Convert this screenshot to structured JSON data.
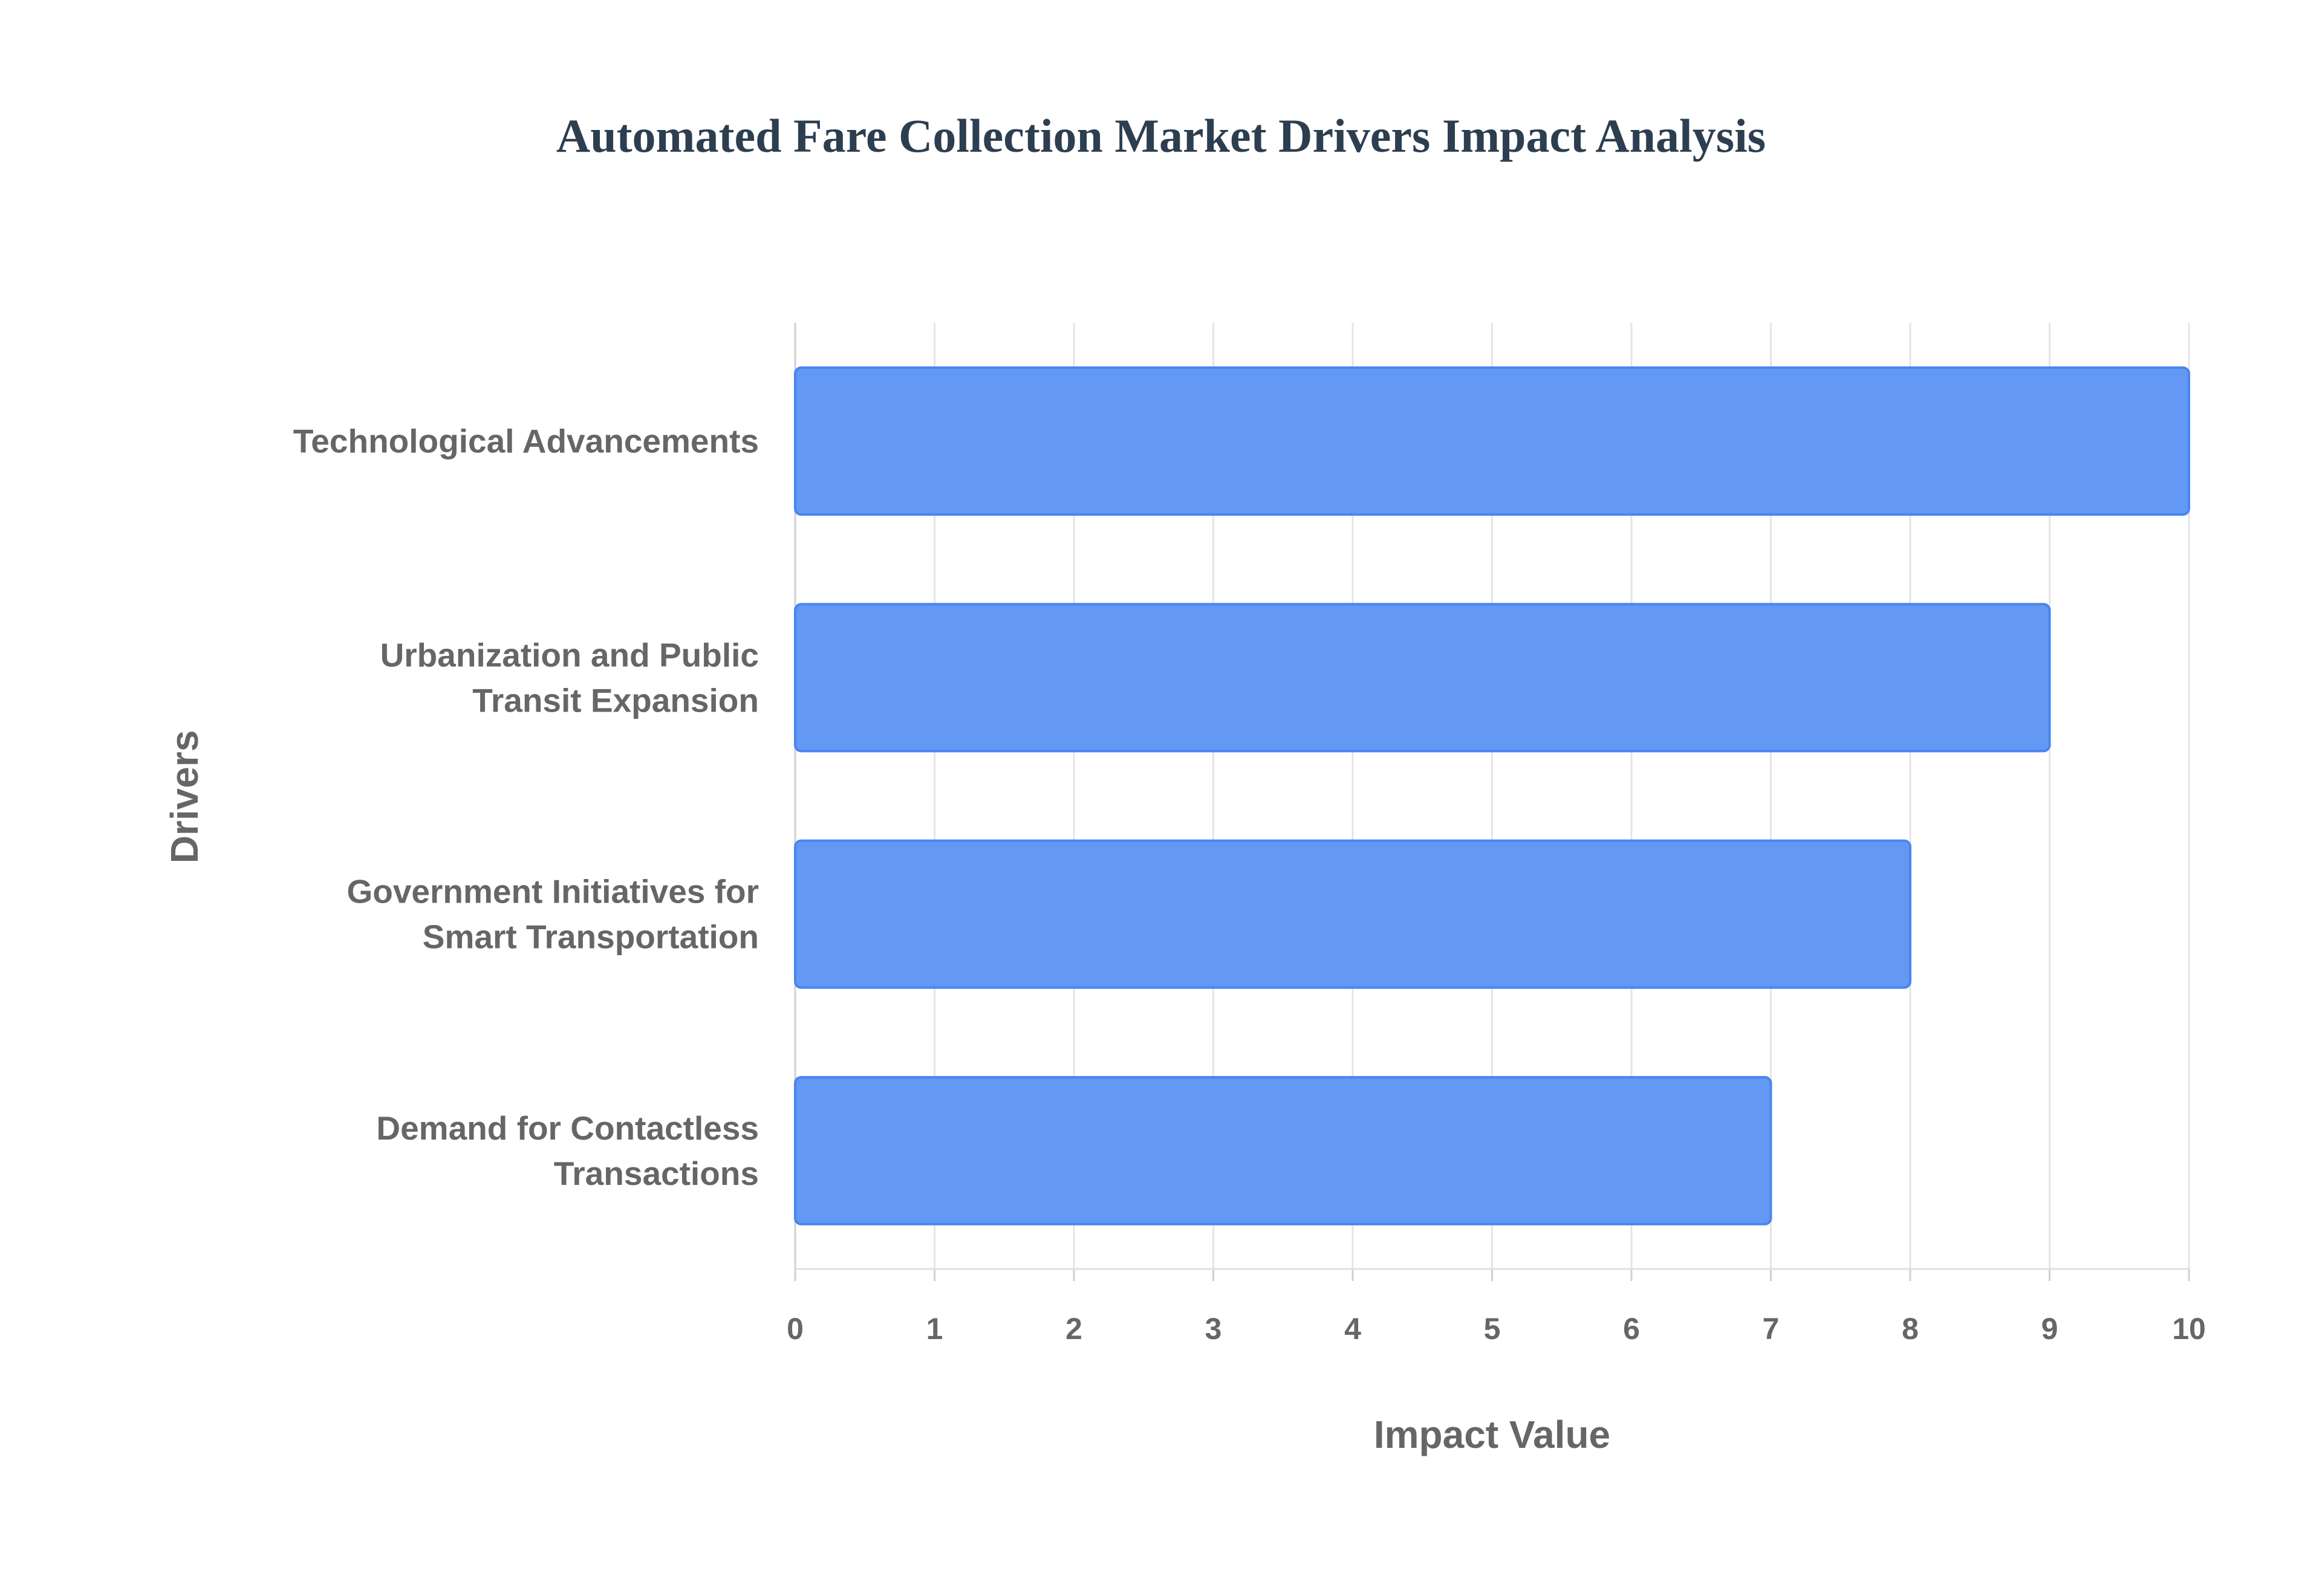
{
  "chart_data": {
    "type": "bar",
    "orientation": "horizontal",
    "title": "Automated Fare Collection Market Drivers Impact Analysis",
    "xlabel": "Impact Value",
    "ylabel": "Drivers",
    "categories": [
      [
        "Technological Advancements"
      ],
      [
        "Urbanization and Public",
        "Transit Expansion"
      ],
      [
        "Government Initiatives for",
        "Smart Transportation"
      ],
      [
        "Demand for Contactless",
        "Transactions"
      ]
    ],
    "values": [
      10,
      9,
      8,
      7
    ],
    "xlim": [
      0,
      10
    ],
    "xticks": [
      "0",
      "1",
      "2",
      "3",
      "4",
      "5",
      "6",
      "7",
      "8",
      "9",
      "10"
    ],
    "grid": true,
    "colors": {
      "bar_fill": "#6399f5",
      "bar_border": "#4a85ef",
      "title": "#2c3e50",
      "text": "#666666",
      "grid": "#e5e5e5"
    }
  }
}
